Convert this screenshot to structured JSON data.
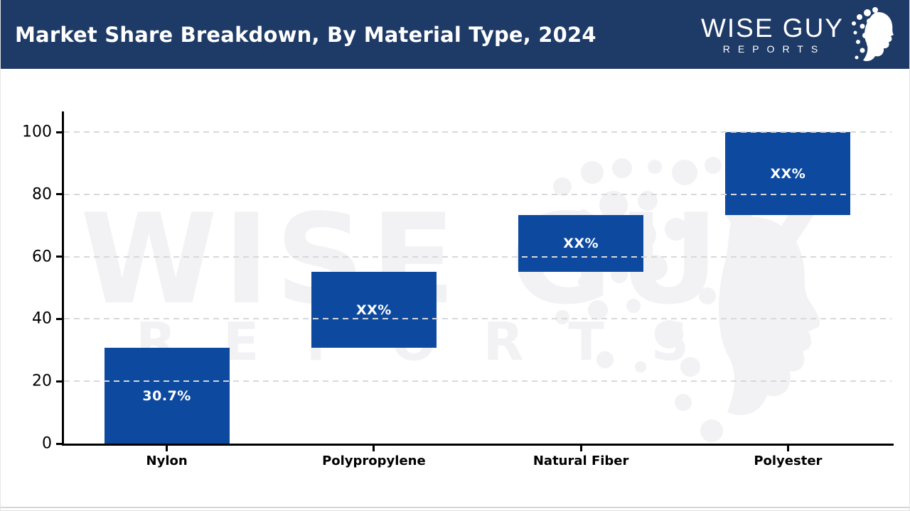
{
  "header": {
    "title": "Market Share Breakdown, By Material Type, 2024",
    "logo": {
      "line1": "WISE GUY",
      "line2": "REPORTS"
    }
  },
  "watermark": {
    "line1": "WISE GUY",
    "line2": "REPORTS"
  },
  "colors": {
    "header_bg": "#1e3a66",
    "bar": "#0d4a9f",
    "bar_label": "#ffffff",
    "grid": "#d8d8d8",
    "axis": "#000000",
    "watermark": "#f2f2f4",
    "title_text": "#ffffff"
  },
  "chart_data": {
    "type": "bar",
    "subtype": "waterfall",
    "title": "Market Share Breakdown, By Material Type, 2024",
    "categories": [
      "Nylon",
      "Polypropylene",
      "Natural Fiber",
      "Polyester"
    ],
    "segments": [
      {
        "category": "Nylon",
        "start": 0,
        "end": 30.7,
        "label": "30.7%"
      },
      {
        "category": "Polypropylene",
        "start": 30.7,
        "end": 55.1,
        "label": "XX%"
      },
      {
        "category": "Natural Fiber",
        "start": 55.1,
        "end": 73.3,
        "label": "XX%"
      },
      {
        "category": "Polyester",
        "start": 73.3,
        "end": 100,
        "label": "XX%"
      }
    ],
    "ylim": [
      0,
      100
    ],
    "yticks": [
      0,
      20,
      40,
      60,
      80,
      100
    ],
    "xlabel": "",
    "ylabel": "",
    "grid": "horizontal-dashed-over-bars",
    "legend": "none"
  }
}
